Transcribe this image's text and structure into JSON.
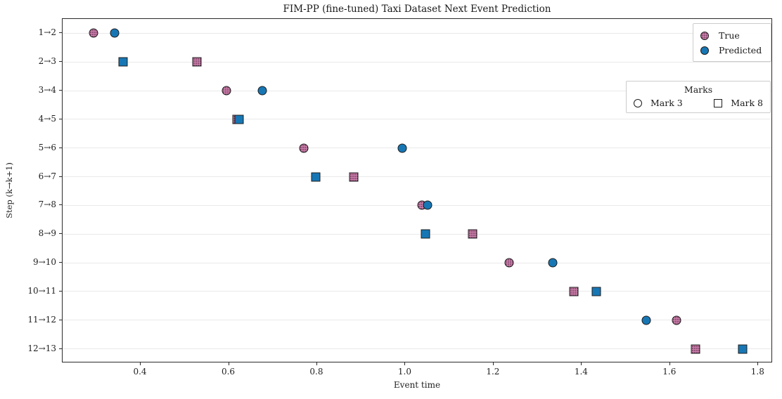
{
  "chart_data": {
    "type": "scatter",
    "title": "FIM-PP (fine-tuned) Taxi Dataset Next Event Prediction",
    "xlabel": "Event time",
    "ylabel": "Step (k→k+1)",
    "xlim": [
      0.223,
      1.833
    ],
    "xticks": [
      0.4,
      0.6,
      0.8,
      1.0,
      1.2,
      1.4,
      1.6,
      1.8
    ],
    "grid": "horizontal",
    "legend_position": "upper right",
    "colors": {
      "true": "#ca7fa9",
      "predicted": "#1777b5",
      "edge": "#1c1c1c",
      "gridline": "#e9e9e9"
    },
    "series": [
      {
        "name": "True",
        "role": "true"
      },
      {
        "name": "Predicted",
        "role": "pred"
      }
    ],
    "rows": [
      {
        "step": "1→2",
        "mark": 3,
        "shape": "circle",
        "true": 0.293,
        "predicted": 0.341
      },
      {
        "step": "2→3",
        "mark": 8,
        "shape": "square",
        "true": 0.527,
        "predicted": 0.36
      },
      {
        "step": "3→4",
        "mark": 3,
        "shape": "circle",
        "true": 0.595,
        "predicted": 0.676
      },
      {
        "step": "4→5",
        "mark": 8,
        "shape": "square",
        "true": 0.618,
        "predicted": 0.623
      },
      {
        "step": "5→6",
        "mark": 3,
        "shape": "circle",
        "true": 0.769,
        "predicted": 0.993
      },
      {
        "step": "6→7",
        "mark": 8,
        "shape": "square",
        "true": 0.883,
        "predicted": 0.797
      },
      {
        "step": "7→8",
        "mark": 3,
        "shape": "circle",
        "true": 1.037,
        "predicted": 1.051
      },
      {
        "step": "8→9",
        "mark": 8,
        "shape": "square",
        "true": 1.153,
        "predicted": 1.046
      },
      {
        "step": "9→10",
        "mark": 3,
        "shape": "circle",
        "true": 1.235,
        "predicted": 1.334
      },
      {
        "step": "10→11",
        "mark": 8,
        "shape": "square",
        "true": 1.382,
        "predicted": 1.433
      },
      {
        "step": "11→12",
        "mark": 3,
        "shape": "circle",
        "true": 1.614,
        "predicted": 1.546
      },
      {
        "step": "12→13",
        "mark": 8,
        "shape": "square",
        "true": 1.657,
        "predicted": 1.765
      }
    ]
  },
  "legends": {
    "series": {
      "items": [
        {
          "label": "True",
          "color": "#ca7fa9",
          "shape": "circle"
        },
        {
          "label": "Predicted",
          "color": "#1777b5",
          "shape": "circle"
        }
      ]
    },
    "marks": {
      "title": "Marks",
      "items": [
        {
          "label": "Mark 3",
          "shape": "circle"
        },
        {
          "label": "Mark 8",
          "shape": "square"
        }
      ]
    }
  }
}
